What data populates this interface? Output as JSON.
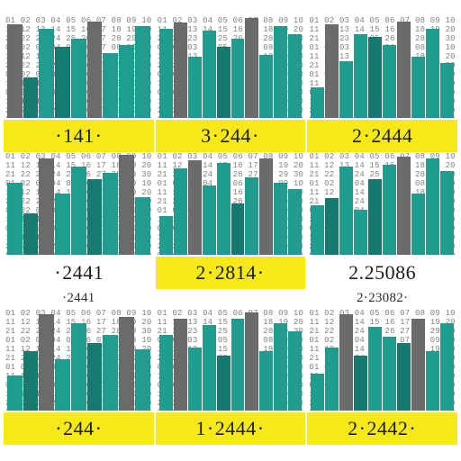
{
  "background_color": "#ffffff",
  "highlight_color": "#f8eb17",
  "bar_palette": {
    "teal": "#1f9e8f",
    "teal_dark": "#147a6f",
    "gray": "#6b6b6b",
    "gray_light": "#b5b5b5",
    "olive": "#6e6a27"
  },
  "bg_noise_lines": [
    "01 02 03 04 05 06 07 08 09 10",
    "11 12 13 14 15 16 17 18 19 20",
    "21 22 23 24 25 26 27 28 29 30",
    "01 02 03 04 05 06 07 08 09 10",
    "11 12 13 14 15 16 17 18 19 20",
    "21 22 23 24 25 26 27 28 29 30",
    "01 02 03 04 05 06 07 08 09 10",
    "11 12 13 14 15 16 17 18 19 20"
  ],
  "rows": [
    {
      "panels": [
        {
          "bars": [
            {
              "h": 0.92,
              "c": "#6b6b6b"
            },
            {
              "h": 0.4,
              "c": "#147a6f"
            },
            {
              "h": 0.88,
              "c": "#1f9e8f"
            },
            {
              "h": 0.7,
              "c": "#147a6f"
            },
            {
              "h": 0.78,
              "c": "#1f9e8f"
            },
            {
              "h": 0.95,
              "c": "#6b6b6b"
            },
            {
              "h": 0.64,
              "c": "#1f9e8f"
            },
            {
              "h": 0.72,
              "c": "#1f9e8f"
            },
            {
              "h": 0.9,
              "c": "#1f9e8f"
            }
          ]
        },
        {
          "bars": [
            {
              "h": 0.88,
              "c": "#1f9e8f"
            },
            {
              "h": 0.94,
              "c": "#6b6b6b"
            },
            {
              "h": 0.6,
              "c": "#1f9e8f"
            },
            {
              "h": 0.86,
              "c": "#1f9e8f"
            },
            {
              "h": 0.7,
              "c": "#147a6f"
            },
            {
              "h": 0.78,
              "c": "#1f9e8f"
            },
            {
              "h": 0.98,
              "c": "#6b6b6b"
            },
            {
              "h": 0.62,
              "c": "#1f9e8f"
            },
            {
              "h": 0.9,
              "c": "#1f9e8f"
            },
            {
              "h": 0.82,
              "c": "#1f9e8f"
            }
          ]
        },
        {
          "bars": [
            {
              "h": 0.3,
              "c": "#1f9e8f"
            },
            {
              "h": 0.92,
              "c": "#6b6b6b"
            },
            {
              "h": 0.56,
              "c": "#1f9e8f"
            },
            {
              "h": 0.82,
              "c": "#1f9e8f"
            },
            {
              "h": 0.8,
              "c": "#147a6f"
            },
            {
              "h": 0.72,
              "c": "#1f9e8f"
            },
            {
              "h": 0.95,
              "c": "#6b6b6b"
            },
            {
              "h": 0.6,
              "c": "#1f9e8f"
            },
            {
              "h": 0.88,
              "c": "#1f9e8f"
            },
            {
              "h": 0.54,
              "c": "#1f9e8f"
            }
          ]
        }
      ],
      "caps": [
        {
          "text": "·141·",
          "hl": true
        },
        {
          "text": "3·244·",
          "hl": true
        },
        {
          "text": "2·2444",
          "hl": true
        }
      ]
    },
    {
      "panels": [
        {
          "bars": [
            {
              "h": 0.7,
              "c": "#1f9e8f"
            },
            {
              "h": 0.4,
              "c": "#147a6f"
            },
            {
              "h": 0.94,
              "c": "#6b6b6b"
            },
            {
              "h": 0.6,
              "c": "#1f9e8f"
            },
            {
              "h": 0.86,
              "c": "#1f9e8f"
            },
            {
              "h": 0.74,
              "c": "#147a6f"
            },
            {
              "h": 0.8,
              "c": "#1f9e8f"
            },
            {
              "h": 0.98,
              "c": "#6b6b6b"
            },
            {
              "h": 0.56,
              "c": "#1f9e8f"
            }
          ]
        },
        {
          "bars": [
            {
              "h": 0.38,
              "c": "#1f9e8f"
            },
            {
              "h": 0.84,
              "c": "#1f9e8f"
            },
            {
              "h": 0.92,
              "c": "#6b6b6b"
            },
            {
              "h": 0.68,
              "c": "#1f9e8f"
            },
            {
              "h": 0.9,
              "c": "#1f9e8f"
            },
            {
              "h": 0.5,
              "c": "#147a6f"
            },
            {
              "h": 0.76,
              "c": "#1f9e8f"
            },
            {
              "h": 0.94,
              "c": "#6b6b6b"
            },
            {
              "h": 0.7,
              "c": "#1f9e8f"
            },
            {
              "h": 0.64,
              "c": "#1f9e8f"
            }
          ]
        },
        {
          "bars": [
            {
              "h": 0.48,
              "c": "#1f9e8f"
            },
            {
              "h": 0.55,
              "c": "#147a6f"
            },
            {
              "h": 0.86,
              "c": "#1f9e8f"
            },
            {
              "h": 0.44,
              "c": "#1f9e8f"
            },
            {
              "h": 0.74,
              "c": "#147a6f"
            },
            {
              "h": 0.88,
              "c": "#1f9e8f"
            },
            {
              "h": 0.96,
              "c": "#6b6b6b"
            },
            {
              "h": 0.6,
              "c": "#1f9e8f"
            },
            {
              "h": 0.94,
              "c": "#1f9e8f"
            },
            {
              "h": 0.82,
              "c": "#1f9e8f"
            }
          ]
        }
      ],
      "caps": [
        {
          "text": "·2441",
          "hl": false
        },
        {
          "text": "2·2814·",
          "hl": true
        },
        {
          "text": "2.25086",
          "hl": false
        }
      ],
      "subs": [
        "·2441",
        "",
        "2·23082·"
      ]
    },
    {
      "panels": [
        {
          "bars": [
            {
              "h": 0.34,
              "c": "#1f9e8f"
            },
            {
              "h": 0.58,
              "c": "#147a6f"
            },
            {
              "h": 0.94,
              "c": "#6b6b6b"
            },
            {
              "h": 0.5,
              "c": "#1f9e8f"
            },
            {
              "h": 0.86,
              "c": "#1f9e8f"
            },
            {
              "h": 0.66,
              "c": "#147a6f"
            },
            {
              "h": 0.74,
              "c": "#1f9e8f"
            },
            {
              "h": 0.92,
              "c": "#6b6b6b"
            },
            {
              "h": 0.6,
              "c": "#1f9e8f"
            }
          ]
        },
        {
          "bars": [
            {
              "h": 0.74,
              "c": "#1f9e8f"
            },
            {
              "h": 0.9,
              "c": "#6b6b6b"
            },
            {
              "h": 0.62,
              "c": "#1f9e8f"
            },
            {
              "h": 0.84,
              "c": "#1f9e8f"
            },
            {
              "h": 0.54,
              "c": "#147a6f"
            },
            {
              "h": 0.9,
              "c": "#1f9e8f"
            },
            {
              "h": 0.96,
              "c": "#6b6b6b"
            },
            {
              "h": 0.58,
              "c": "#1f9e8f"
            },
            {
              "h": 0.86,
              "c": "#1f9e8f"
            },
            {
              "h": 0.78,
              "c": "#1f9e8f"
            }
          ]
        },
        {
          "bars": [
            {
              "h": 0.36,
              "c": "#1f9e8f"
            },
            {
              "h": 0.62,
              "c": "#1f9e8f"
            },
            {
              "h": 0.94,
              "c": "#6b6b6b"
            },
            {
              "h": 0.54,
              "c": "#147a6f"
            },
            {
              "h": 0.82,
              "c": "#1f9e8f"
            },
            {
              "h": 0.72,
              "c": "#1f9e8f"
            },
            {
              "h": 0.66,
              "c": "#147a6f"
            },
            {
              "h": 0.9,
              "c": "#6b6b6b"
            },
            {
              "h": 0.58,
              "c": "#1f9e8f"
            },
            {
              "h": 0.86,
              "c": "#1f9e8f"
            }
          ]
        }
      ],
      "caps": [
        {
          "text": "·244·",
          "hl": true
        },
        {
          "text": "1·2444·",
          "hl": true
        },
        {
          "text": "2·2442·",
          "hl": true
        }
      ]
    }
  ]
}
